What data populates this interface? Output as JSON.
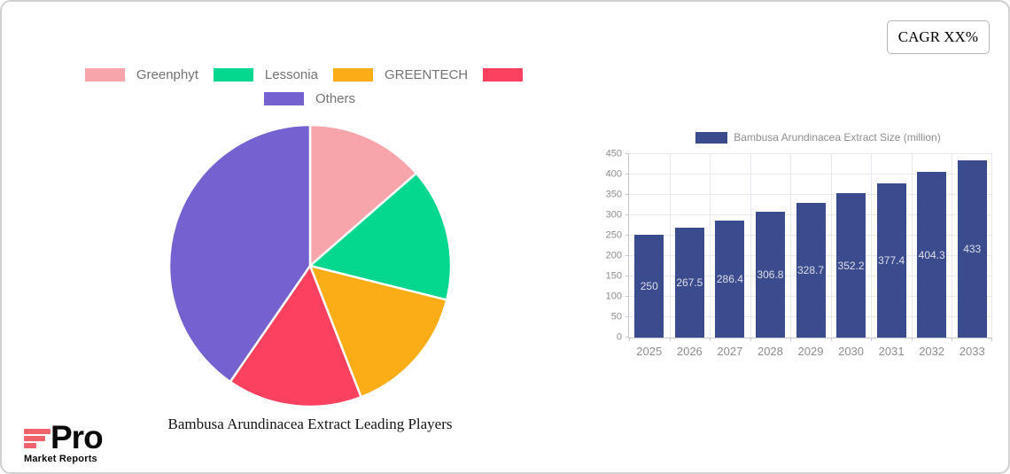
{
  "cagr": {
    "label": "CAGR XX%"
  },
  "logo": {
    "name": "Pro",
    "subtitle": "Market Reports"
  },
  "colors": {
    "frame_border": "#d0d0d0",
    "legend_text": "#737373",
    "axis_text": "#8d8d8d",
    "grid_line": "#e9e9f1",
    "axis_line": "#c6c6d2",
    "bar_value_text": "#dfdfe8",
    "logo_bars": "#f0626c"
  },
  "chart_data": [
    {
      "type": "pie",
      "title": "Bambusa Arundinacea Extract Leading Players",
      "labels": [
        "Greenphyt",
        "Lessonia",
        "GREENTECH",
        "",
        "Others"
      ],
      "values_pct": [
        13.6,
        15.3,
        15.2,
        15.5,
        40.4
      ],
      "colors": [
        "#f7a4aa",
        "#04d88f",
        "#fbad17",
        "#fb4060",
        "#7561cf"
      ],
      "start_angle": "top",
      "direction": "clockwise",
      "legend_position": "top",
      "slice_border_color": "#ffffff"
    },
    {
      "type": "bar",
      "legend": "Bambusa Arundinacea Extract Size (million)",
      "categories": [
        "2025",
        "2026",
        "2027",
        "2028",
        "2029",
        "2030",
        "2031",
        "2032",
        "2033"
      ],
      "values": [
        250,
        267.5,
        286.4,
        306.8,
        328.7,
        352.2,
        377.4,
        404.3,
        433
      ],
      "bar_color": "#3b4c8e",
      "ylim": [
        0,
        450
      ],
      "ytick_step": 50,
      "grid": true,
      "value_labels": "inside-center",
      "legend_position": "top"
    }
  ]
}
